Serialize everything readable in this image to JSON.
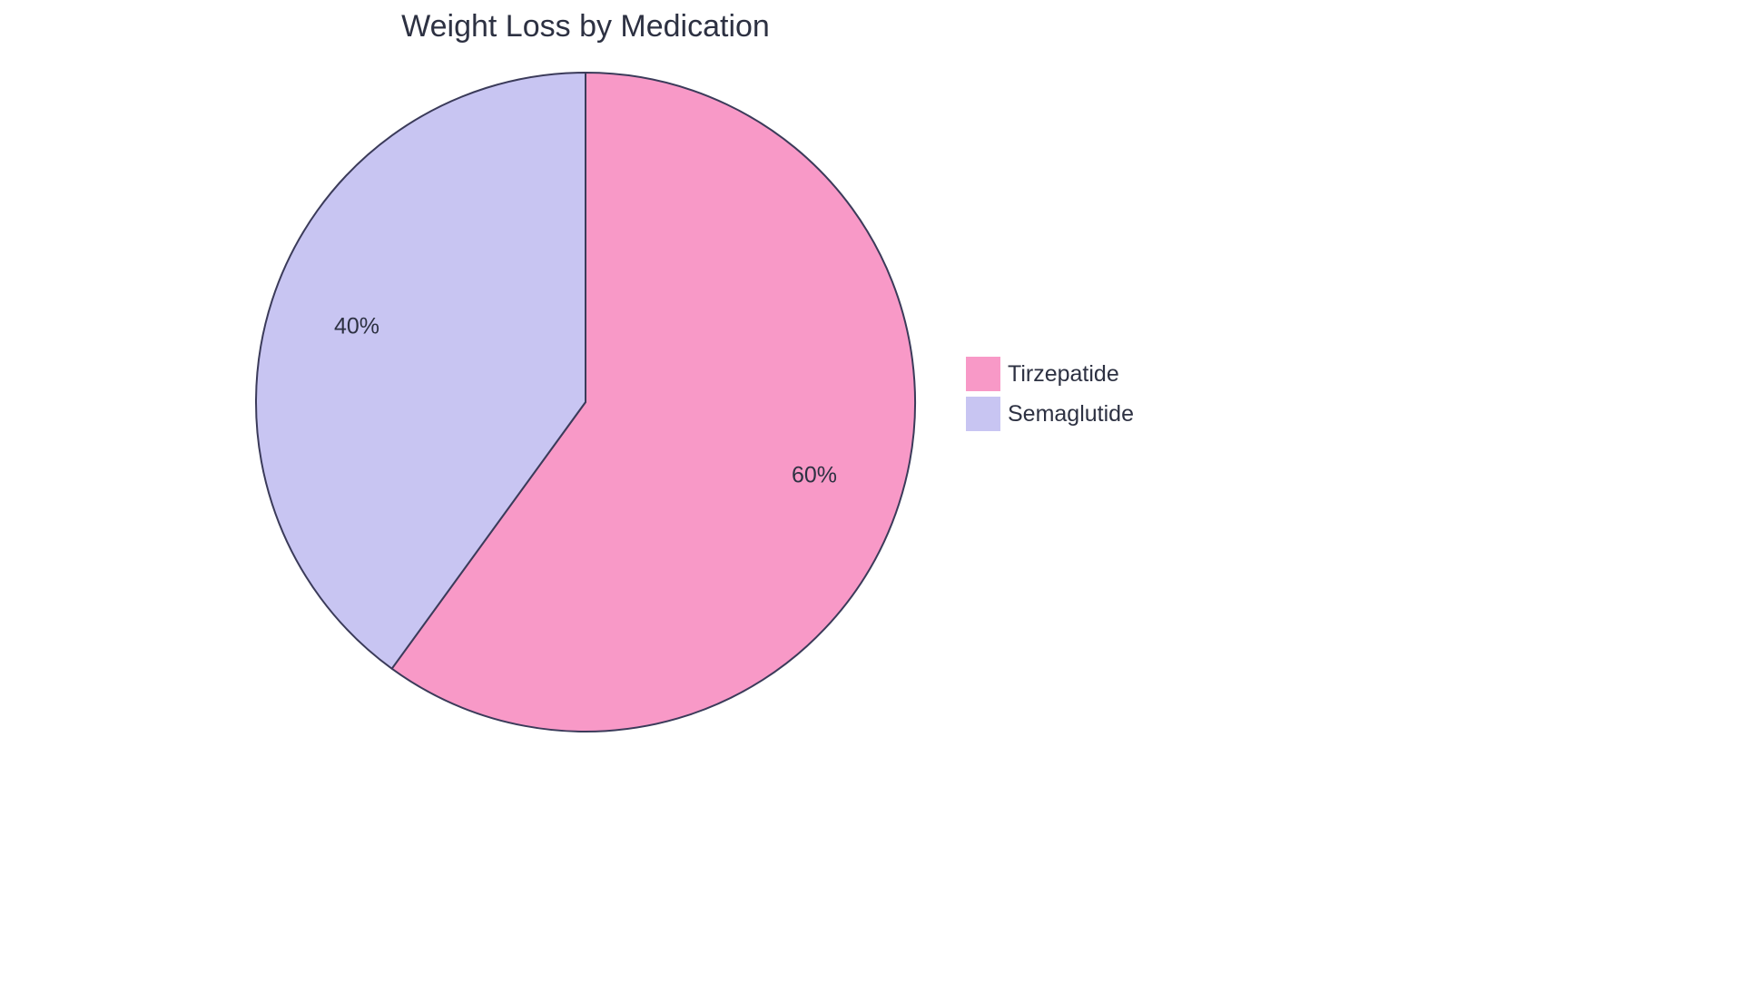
{
  "chart_data": {
    "type": "pie",
    "title": "Weight Loss by Medication",
    "labels": [
      "Tirzepatide",
      "Semaglutide"
    ],
    "values": [
      60,
      40
    ],
    "percent_labels": [
      "60%",
      "40%"
    ],
    "colors": [
      "#F899C7",
      "#C8C5F2"
    ],
    "outline_color": "#3B3B5A",
    "text_color": "#2D3142",
    "legend_position": "right",
    "start_angle_deg": 0,
    "direction": "clockwise"
  }
}
